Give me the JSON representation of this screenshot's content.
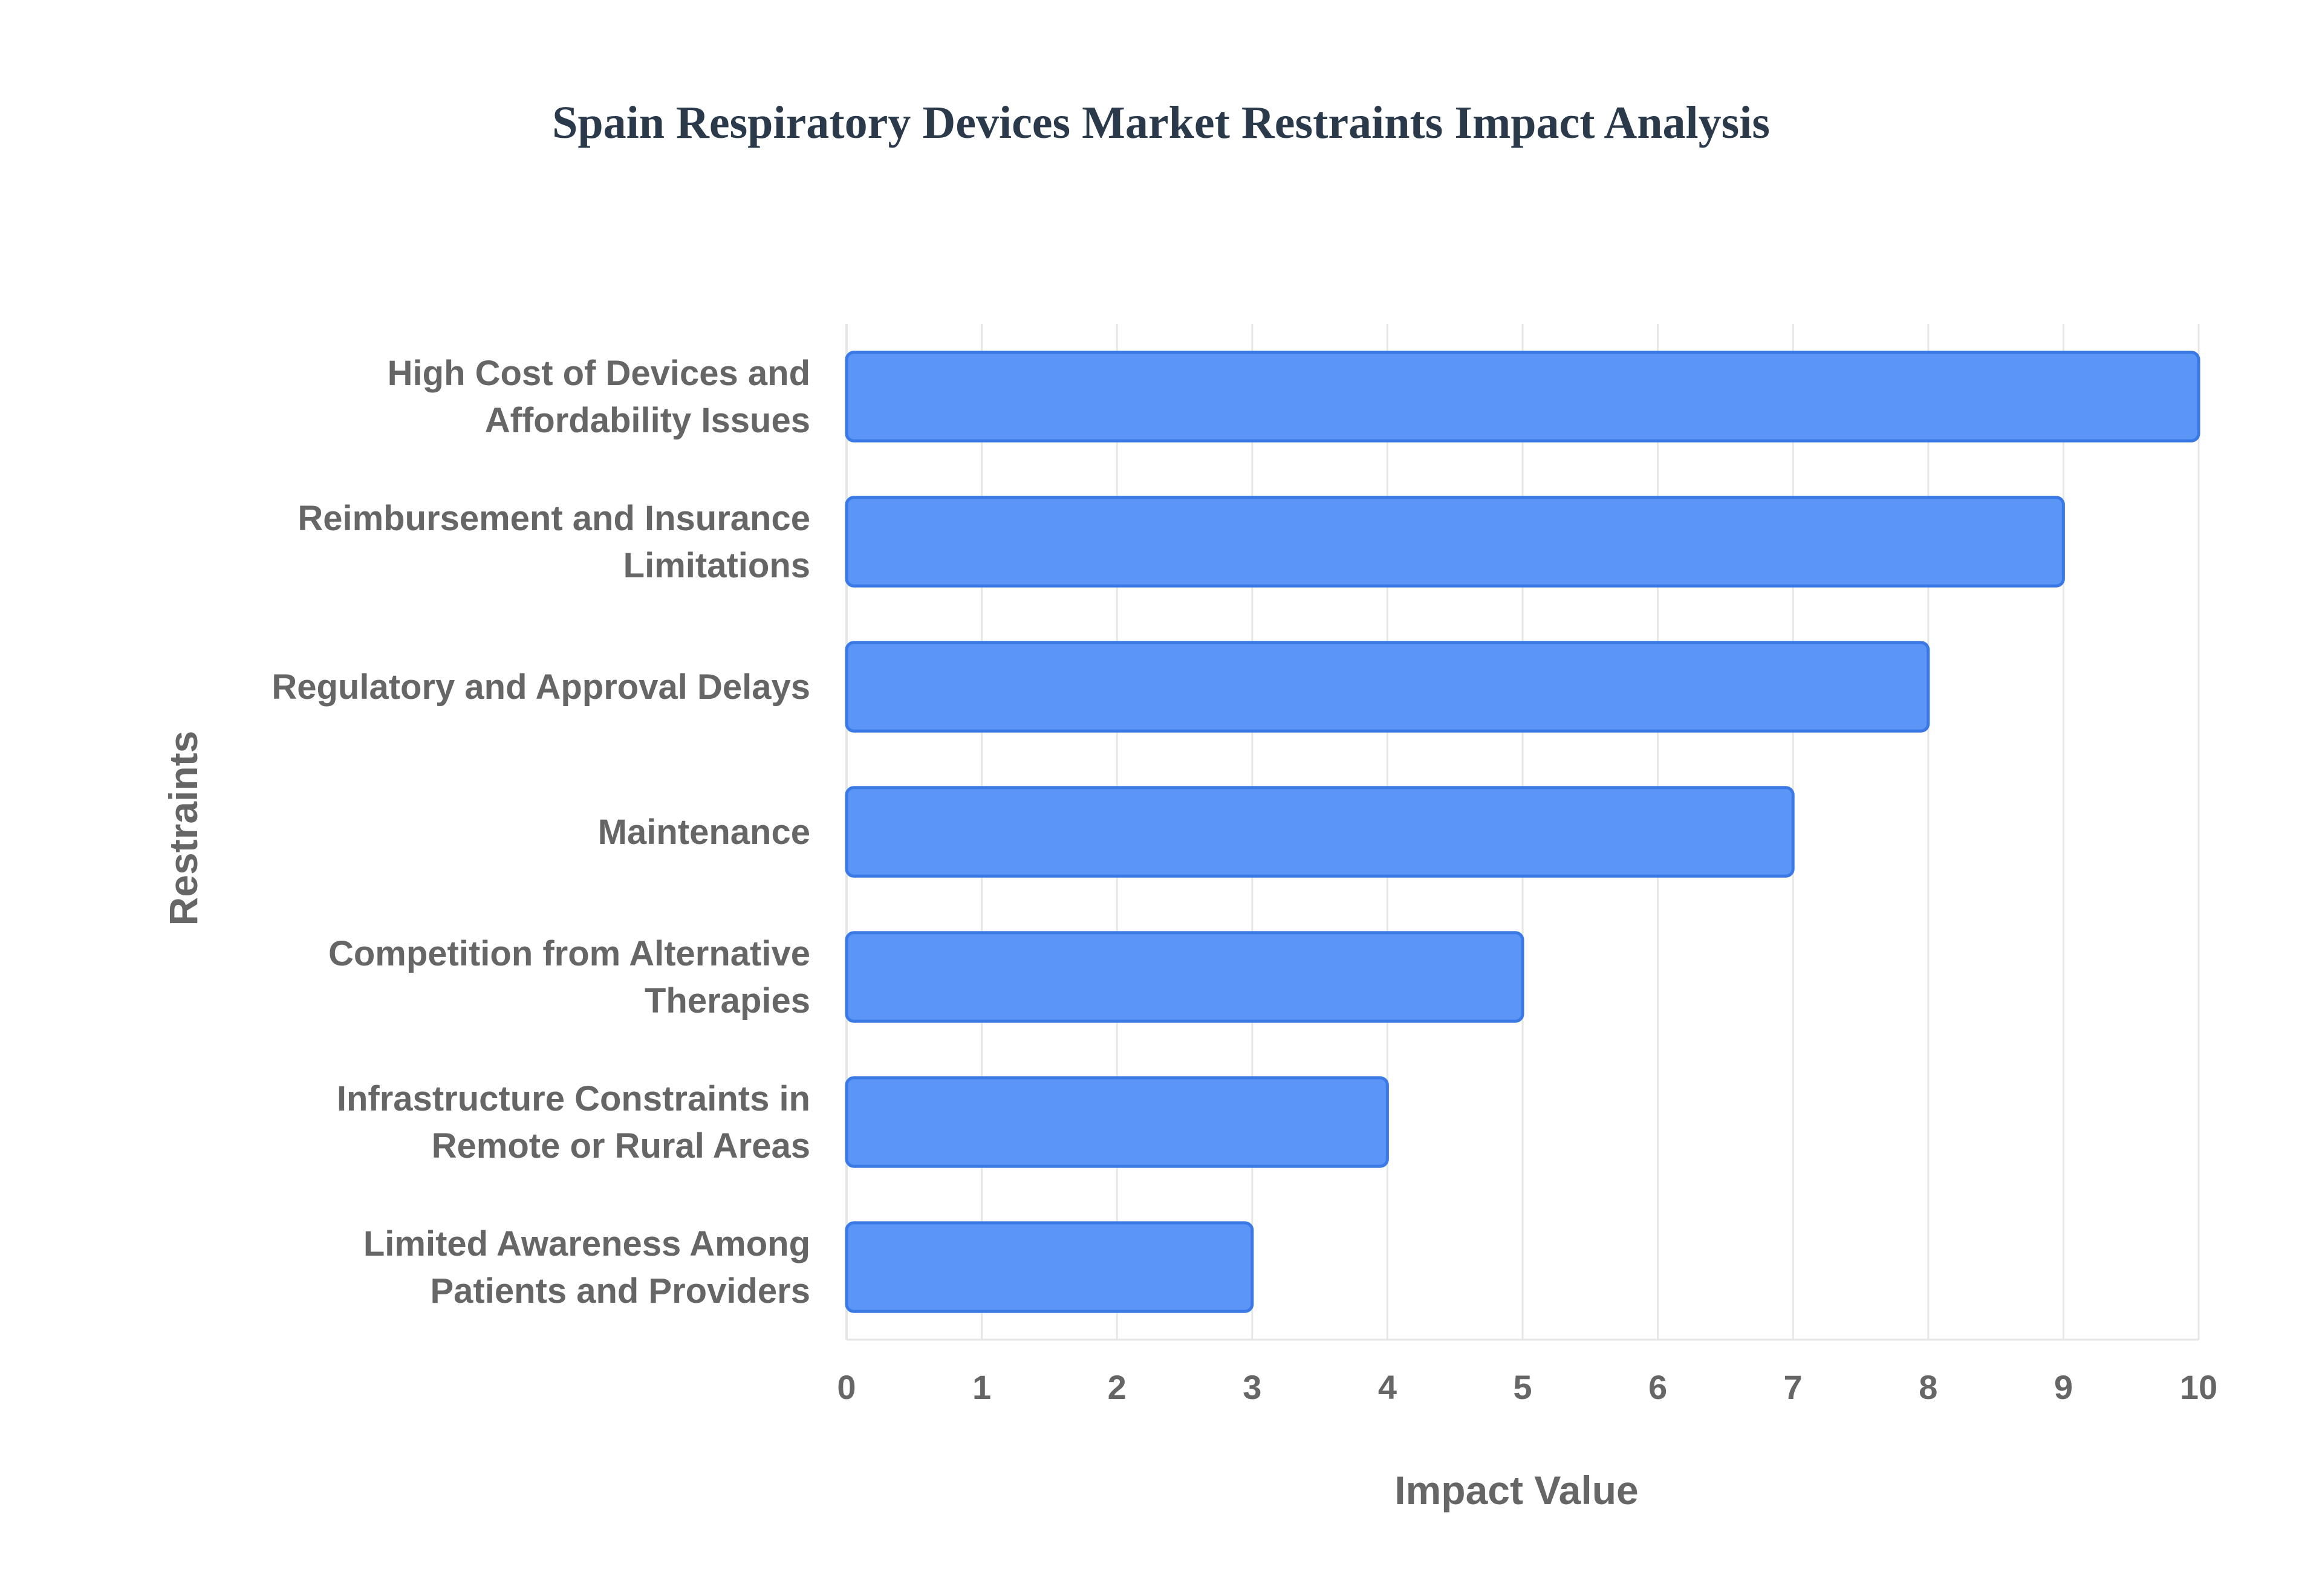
{
  "chart_data": {
    "type": "bar",
    "orientation": "horizontal",
    "title": "Spain Respiratory Devices Market Restraints Impact Analysis",
    "xlabel": "Impact Value",
    "ylabel": "Restraints",
    "xlim": [
      0,
      10
    ],
    "x_ticks": [
      0,
      1,
      2,
      3,
      4,
      5,
      6,
      7,
      8,
      9,
      10
    ],
    "grid": true,
    "legend": "none",
    "categories": [
      [
        "High Cost of Devices and",
        "Affordability Issues"
      ],
      [
        "Reimbursement and Insurance",
        "Limitations"
      ],
      [
        "Regulatory and Approval Delays"
      ],
      [
        "Maintenance"
      ],
      [
        "Competition from Alternative",
        "Therapies"
      ],
      [
        "Infrastructure Constraints in",
        "Remote or Rural Areas"
      ],
      [
        "Limited Awareness Among",
        "Patients and Providers"
      ]
    ],
    "values": [
      10,
      9,
      8,
      7,
      5,
      4,
      3
    ],
    "colors": {
      "bar_fill": "#5b96f6",
      "bar_stroke": "#3a78e6",
      "grid": "#e6e6e6",
      "text": "#666666",
      "title": "#2b3a4a"
    }
  }
}
